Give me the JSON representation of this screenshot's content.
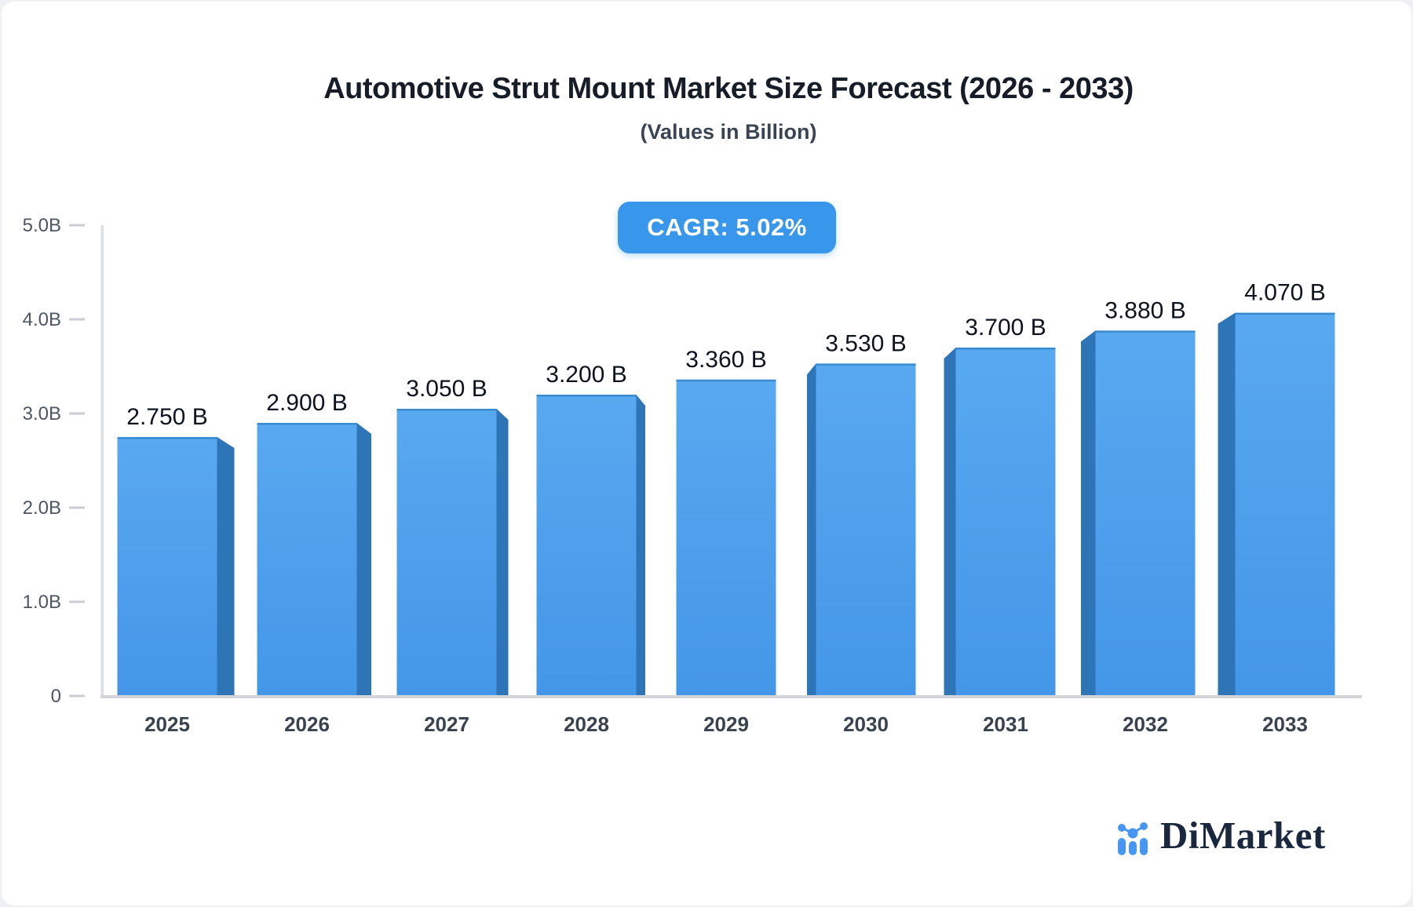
{
  "page": {
    "background": "#eef0f3",
    "card_background": "#ffffff"
  },
  "header": {
    "title": "Automotive Strut Mount Market Size Forecast (2026 - 2033)",
    "subtitle": "(Values in Billion)"
  },
  "badge": {
    "label": "CAGR: 5.02%",
    "color": "#3897ea"
  },
  "chart_data": {
    "type": "bar",
    "title": "Automotive Strut Mount Market Size Forecast (2026 - 2033)",
    "subtitle": "(Values in Billion)",
    "categories": [
      "2025",
      "2026",
      "2027",
      "2028",
      "2029",
      "2030",
      "2031",
      "2032",
      "2033"
    ],
    "values": [
      2.75,
      2.9,
      3.05,
      3.2,
      3.36,
      3.53,
      3.7,
      3.88,
      4.07
    ],
    "value_labels": [
      "2.750 B",
      "2.900 B",
      "3.050 B",
      "3.200 B",
      "3.360 B",
      "3.530 B",
      "3.700 B",
      "3.880 B",
      "4.070 B"
    ],
    "unit": "Billion",
    "y_ticks": [
      {
        "value": 0,
        "label": "0"
      },
      {
        "value": 1,
        "label": "1.0B"
      },
      {
        "value": 2,
        "label": "2.0B"
      },
      {
        "value": 3,
        "label": "3.0B"
      },
      {
        "value": 4,
        "label": "4.0B"
      },
      {
        "value": 5,
        "label": "5.0B"
      }
    ],
    "ylim": [
      0,
      5
    ],
    "grid": false,
    "legend": false,
    "style_3d": "center-perspective",
    "colors": {
      "bar_face_top": "#58a9f0",
      "bar_face_bottom": "#4496e8",
      "bar_side": "#2e75b7",
      "bar_top_edge": "#3585cc",
      "axis_line": "#dcdee2",
      "baseline": "#d2d4d8",
      "tick": "#c9ccd2",
      "y_label": "#4d5663",
      "x_label": "#39424f",
      "value_label": "#0e1320"
    }
  },
  "logo": {
    "text": "DiMarket",
    "icon": "dimarket-chart-icon",
    "icon_color": "#4797f2",
    "text_color": "#19273f"
  }
}
